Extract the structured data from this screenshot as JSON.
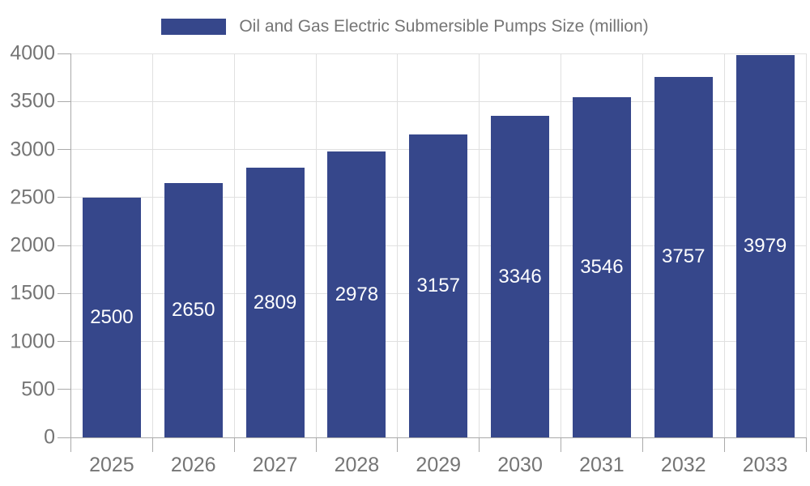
{
  "legend": {
    "label": "Oil and Gas Electric Submersible Pumps Size (million)"
  },
  "chart_data": {
    "type": "bar",
    "title": "Oil and Gas Electric Submersible Pumps Size (million)",
    "categories": [
      "2025",
      "2026",
      "2027",
      "2028",
      "2029",
      "2030",
      "2031",
      "2032",
      "2033"
    ],
    "values": [
      2500,
      2650,
      2809,
      2978,
      3157,
      3346,
      3546,
      3757,
      3979
    ],
    "value_labels": [
      "2500",
      "2650",
      "2809",
      "2978",
      "3157",
      "3346",
      "3546",
      "3757",
      "3979"
    ],
    "y_ticks": [
      "0",
      "500",
      "1000",
      "1500",
      "2000",
      "2500",
      "3000",
      "3500",
      "4000"
    ],
    "ylim": [
      0,
      4000
    ],
    "ytick_interval": 500,
    "xlabel": "",
    "ylabel": "",
    "grid": true,
    "legend_position": "top",
    "colors": {
      "bar": "#36478B",
      "grid_line": "#E0E0E0",
      "axis_line": "#AAAAAA",
      "axis_text": "#757575",
      "value_text": "#FFFFFF",
      "background": "#FFFFFF"
    }
  }
}
